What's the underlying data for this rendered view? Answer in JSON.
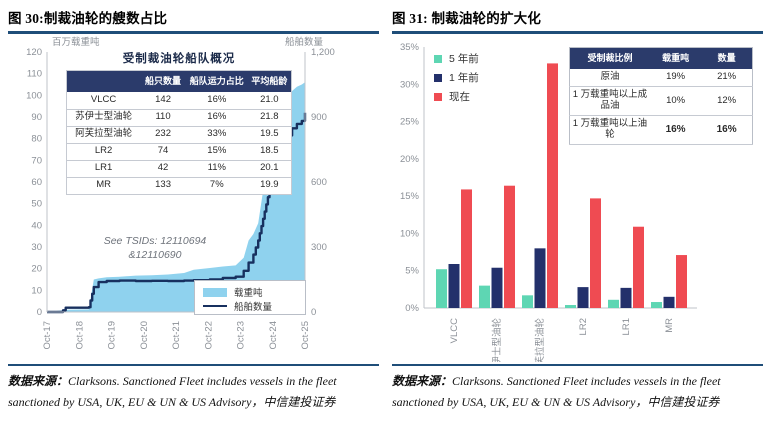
{
  "colors": {
    "rule_blue": "#1F4E79",
    "area_blue": "#8FD2EE",
    "line_navy": "#17305F",
    "table_header_navy": "#2B3B6B",
    "bar_teal": "#5ED6B3",
    "bar_navy": "#23306B",
    "bar_red": "#EF4B52",
    "axis_text_gray": "#8b9097",
    "axis_line_gray": "#bfc3ca"
  },
  "left": {
    "title": "图 30:制裁油轮的艘数占比",
    "y_left_label": "百万载重吨",
    "y_right_label": "船舶数量",
    "annotation": [
      "See TSIDs: 12110694",
      "&12110690"
    ],
    "legend": {
      "area_label": "载重吨",
      "line_label": "船舶数量"
    },
    "overlay_table": {
      "title": "受制裁油轮船队概况",
      "headers": [
        "",
        "船只数量",
        "船队运力占比",
        "平均船龄"
      ],
      "rows": [
        [
          "VLCC",
          "142",
          "16%",
          "21.0"
        ],
        [
          "苏伊士型油轮",
          "110",
          "16%",
          "21.8"
        ],
        [
          "阿芙拉型油轮",
          "232",
          "33%",
          "19.5"
        ],
        [
          "LR2",
          "74",
          "15%",
          "18.5"
        ],
        [
          "LR1",
          "42",
          "11%",
          "20.1"
        ],
        [
          "MR",
          "133",
          "7%",
          "19.9"
        ]
      ]
    },
    "source_prefix": "数据来源：",
    "source_text": "Clarksons. Sanctioned Fleet includes vessels in the fleet sanctioned by USA, UK, EU & UN & US Advisory，中信建投证券"
  },
  "right": {
    "title": "图 31: 制裁油轮的扩大化",
    "legend": [
      {
        "label": "5 年前"
      },
      {
        "label": "1 年前"
      },
      {
        "label": "现在"
      }
    ],
    "overlay_table": {
      "headers": [
        "受制裁比例",
        "载重吨",
        "数量"
      ],
      "rows": [
        {
          "cells": [
            "原油",
            "19%",
            "21%"
          ],
          "bold": false
        },
        {
          "cells": [
            "1 万载重吨以上成品油",
            "10%",
            "12%"
          ],
          "bold": false
        },
        {
          "cells": [
            "1 万载重吨以上油轮",
            "16%",
            "16%"
          ],
          "bold": true
        }
      ]
    },
    "source_prefix": "数据来源：",
    "source_text": "Clarksons. Sanctioned Fleet includes vessels in the fleet sanctioned by USA, UK, EU & UN & US Advisory，中信建投证券"
  },
  "chart_data": [
    {
      "type": "area",
      "title": "受制裁油轮船队概况 (sanctioned tanker fleet over time)",
      "x_axis": {
        "ticks": [
          "Oct-17",
          "Oct-18",
          "Oct-19",
          "Oct-20",
          "Oct-21",
          "Oct-22",
          "Oct-23",
          "Oct-24",
          "Oct-25"
        ],
        "t_start": 2017.75,
        "t_end": 2025.75
      },
      "y_left": {
        "label": "百万载重吨",
        "min": 0,
        "max": 120,
        "step": 10
      },
      "y_right": {
        "label": "船舶数量",
        "min": 0,
        "max": 1200,
        "ticks": [
          0,
          300,
          600,
          900,
          1200
        ]
      },
      "grid": false,
      "legend_position": "inside bottom-right",
      "series": [
        {
          "name": "载重吨",
          "type": "area",
          "axis": "left",
          "color": "#8FD2EE"
        },
        {
          "name": "船舶数量",
          "type": "line",
          "axis": "right",
          "color": "#17305F"
        }
      ],
      "points_t_dwt_ships": [
        [
          2017.75,
          0,
          0
        ],
        [
          2018.25,
          0.8,
          8
        ],
        [
          2018.33,
          1.0,
          20
        ],
        [
          2019.05,
          1.2,
          22
        ],
        [
          2019.2,
          15.0,
          115
        ],
        [
          2019.35,
          15.5,
          138
        ],
        [
          2019.6,
          16.0,
          143
        ],
        [
          2020.0,
          16.3,
          145
        ],
        [
          2020.5,
          16.8,
          143
        ],
        [
          2021.0,
          17.0,
          144
        ],
        [
          2021.5,
          17.3,
          143
        ],
        [
          2022.0,
          18.0,
          145
        ],
        [
          2022.3,
          19.5,
          147
        ],
        [
          2022.8,
          20.3,
          150
        ],
        [
          2023.2,
          21.0,
          157
        ],
        [
          2023.6,
          21.5,
          163
        ],
        [
          2023.85,
          25.0,
          190
        ],
        [
          2024.0,
          33.0,
          228
        ],
        [
          2024.15,
          36.0,
          265
        ],
        [
          2024.3,
          41.0,
          330
        ],
        [
          2024.45,
          56.0,
          430
        ],
        [
          2024.6,
          68.0,
          530
        ],
        [
          2024.75,
          80.0,
          615
        ],
        [
          2024.9,
          88.0,
          680
        ],
        [
          2025.05,
          95.0,
          755
        ],
        [
          2025.2,
          99.0,
          815
        ],
        [
          2025.35,
          102.0,
          848
        ],
        [
          2025.5,
          104.0,
          868
        ],
        [
          2025.65,
          105.0,
          882
        ],
        [
          2025.75,
          106.0,
          920
        ]
      ]
    },
    {
      "type": "bar",
      "title": "制裁油轮的扩大化 (share of fleet sanctioned, %)",
      "categories": [
        "VLCC",
        "苏伊士型油轮",
        "阿芙拉型油轮",
        "LR2",
        "LR1",
        "MR"
      ],
      "series": [
        {
          "name": "5 年前",
          "color": "#5ED6B3",
          "values": [
            5.2,
            3.0,
            1.7,
            0.4,
            1.1,
            0.8
          ]
        },
        {
          "name": "1 年前",
          "color": "#23306B",
          "values": [
            5.9,
            5.4,
            8.0,
            2.8,
            2.7,
            1.5
          ]
        },
        {
          "name": "现在",
          "color": "#EF4B52",
          "values": [
            15.9,
            16.4,
            32.8,
            14.7,
            10.9,
            7.1
          ]
        }
      ],
      "ylim": [
        0,
        35
      ],
      "y_step": 5,
      "y_format": "percent",
      "grid": false,
      "legend_position": "inside top-left"
    }
  ]
}
